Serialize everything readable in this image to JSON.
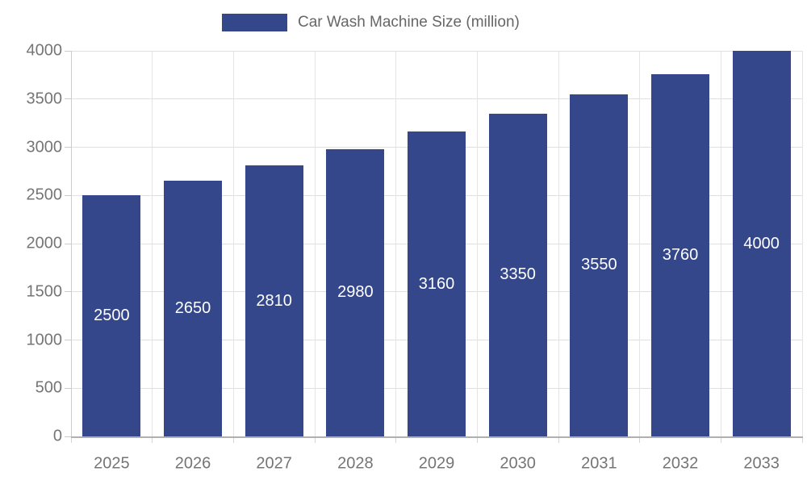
{
  "chart_data": {
    "type": "bar",
    "title": "Car Wash Machine Size (million)",
    "legend_entries": [
      "Car Wash Machine Size (million)"
    ],
    "legend_position": "top-center",
    "categories": [
      "2025",
      "2026",
      "2027",
      "2028",
      "2029",
      "2030",
      "2031",
      "2032",
      "2033"
    ],
    "series": [
      {
        "name": "Car Wash Machine Size (million)",
        "values": [
          2500,
          2650,
          2810,
          2980,
          3160,
          3350,
          3550,
          3760,
          4000
        ]
      }
    ],
    "xlabel": "",
    "ylabel": "",
    "ylim": [
      0,
      4000
    ],
    "y_ticks": [
      0,
      500,
      1000,
      1500,
      2000,
      2500,
      3000,
      3500,
      4000
    ],
    "grid": "on",
    "value_labels": "inside-center",
    "colors": {
      "bar": "#35478B",
      "value_label": "#FFFFFF",
      "axis_label": "#757575",
      "legend_text": "#666666",
      "gridline": "#E0E0E0",
      "axis_line": "#B0B0B0",
      "background": "#FFFFFF"
    }
  }
}
